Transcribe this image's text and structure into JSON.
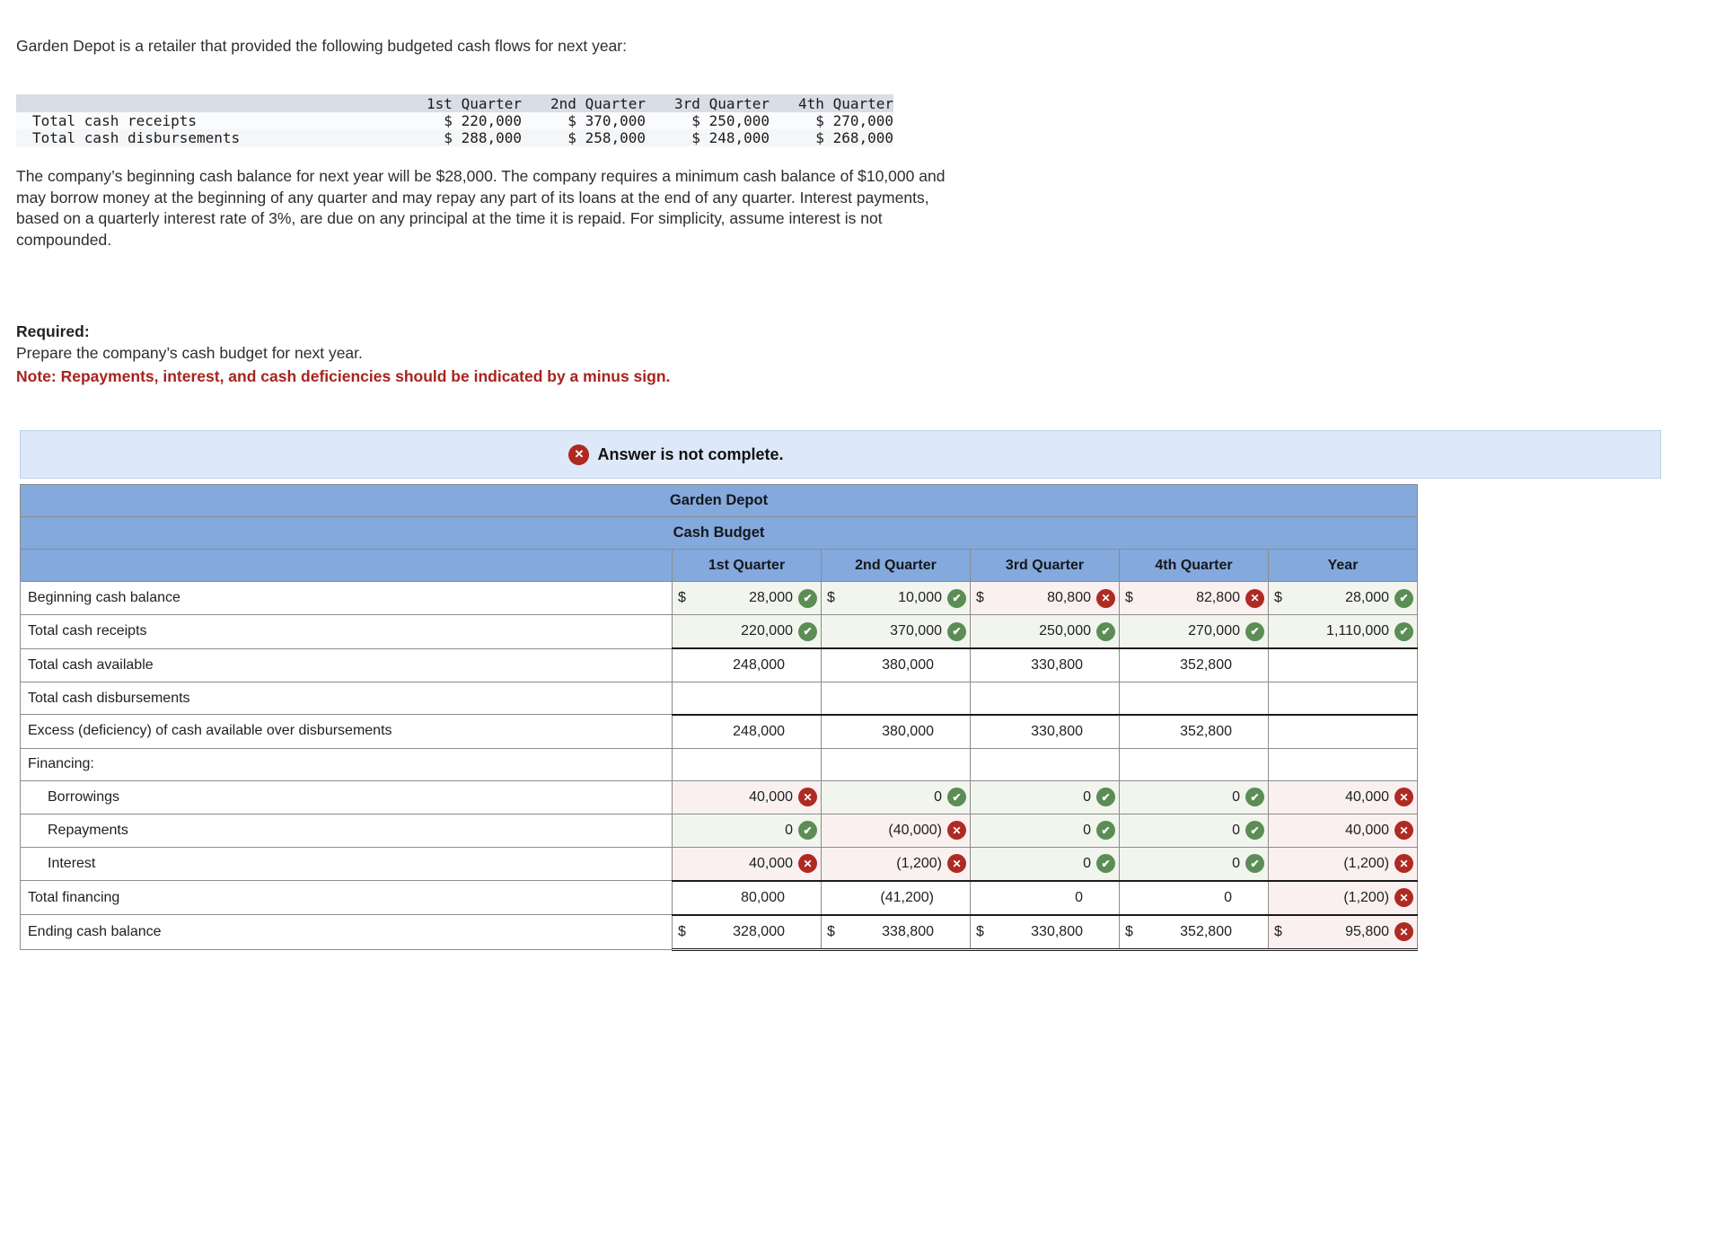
{
  "intro": "Garden Depot is a retailer that provided the following budgeted cash flows for next year:",
  "flows_table": {
    "col_headers": [
      "1st Quarter",
      "2nd Quarter",
      "3rd Quarter",
      "4th Quarter"
    ],
    "rows": [
      {
        "label": "Total cash receipts",
        "values": [
          "$ 220,000",
          "$ 370,000",
          "$ 250,000",
          "$ 270,000"
        ]
      },
      {
        "label": "Total cash disbursements",
        "values": [
          "$ 288,000",
          "$ 258,000",
          "$ 248,000",
          "$ 268,000"
        ]
      }
    ]
  },
  "paragraph_lines": [
    "The company’s beginning cash balance for next year will be $28,000. The company requires a minimum cash balance of $10,000 and",
    "may borrow money at the beginning of any quarter and may repay any part of its loans at the end of any quarter. Interest payments,",
    "based on a quarterly interest rate of 3%, are due on any principal at the time it is repaid. For simplicity, assume interest is not",
    "compounded."
  ],
  "required": {
    "label": "Required:",
    "instruction": "Prepare the company’s cash budget for next year.",
    "note": "Note: Repayments, interest, and cash deficiencies should be indicated by a minus sign."
  },
  "banner": {
    "icon": "x-circle-icon",
    "text": "Answer is not complete."
  },
  "budget_table": {
    "title_line1": "Garden Depot",
    "title_line2": "Cash Budget",
    "col_headers": [
      "1st Quarter",
      "2nd Quarter",
      "3rd Quarter",
      "4th Quarter",
      "Year"
    ],
    "rows": [
      {
        "label": "Beginning cash balance",
        "cells": [
          {
            "dollar": "$",
            "value": "28,000",
            "status": "correct"
          },
          {
            "dollar": "$",
            "value": "10,000",
            "status": "correct"
          },
          {
            "dollar": "$",
            "value": "80,800",
            "status": "wrong"
          },
          {
            "dollar": "$",
            "value": "82,800",
            "status": "wrong"
          },
          {
            "dollar": "$",
            "value": "28,000",
            "status": "correct"
          }
        ]
      },
      {
        "label": "Total cash receipts",
        "rule_bottom": true,
        "cells": [
          {
            "value": "220,000",
            "status": "correct"
          },
          {
            "value": "370,000",
            "status": "correct"
          },
          {
            "value": "250,000",
            "status": "correct"
          },
          {
            "value": "270,000",
            "status": "correct"
          },
          {
            "value": "1,110,000",
            "status": "correct"
          }
        ]
      },
      {
        "label": "Total cash available",
        "cells": [
          {
            "value": "248,000"
          },
          {
            "value": "380,000"
          },
          {
            "value": "330,800"
          },
          {
            "value": "352,800"
          },
          {}
        ]
      },
      {
        "label": "Total cash disbursements",
        "rule_bottom": true,
        "cells": [
          {},
          {},
          {},
          {},
          {}
        ]
      },
      {
        "label": "Excess (deficiency) of cash available over disbursements",
        "cells": [
          {
            "value": "248,000"
          },
          {
            "value": "380,000"
          },
          {
            "value": "330,800"
          },
          {
            "value": "352,800"
          },
          {}
        ]
      },
      {
        "label": "Financing:",
        "cells": [
          {},
          {},
          {},
          {},
          {}
        ]
      },
      {
        "label": "Borrowings",
        "indent": true,
        "cells": [
          {
            "value": "40,000",
            "status": "wrong"
          },
          {
            "value": "0",
            "status": "correct"
          },
          {
            "value": "0",
            "status": "correct"
          },
          {
            "value": "0",
            "status": "correct"
          },
          {
            "value": "40,000",
            "status": "wrong"
          }
        ]
      },
      {
        "label": "Repayments",
        "indent": true,
        "cells": [
          {
            "value": "0",
            "status": "correct"
          },
          {
            "value": "(40,000)",
            "status": "wrong"
          },
          {
            "value": "0",
            "status": "correct"
          },
          {
            "value": "0",
            "status": "correct"
          },
          {
            "value": "40,000",
            "status": "wrong"
          }
        ]
      },
      {
        "label": "Interest",
        "indent": true,
        "rule_bottom": true,
        "cells": [
          {
            "value": "40,000",
            "status": "wrong"
          },
          {
            "value": "(1,200)",
            "status": "wrong"
          },
          {
            "value": "0",
            "status": "correct"
          },
          {
            "value": "0",
            "status": "correct"
          },
          {
            "value": "(1,200)",
            "status": "wrong"
          }
        ]
      },
      {
        "label": "Total financing",
        "rule_bottom": true,
        "cells": [
          {
            "value": "80,000"
          },
          {
            "value": "(41,200)"
          },
          {
            "value": "0"
          },
          {
            "value": "0"
          },
          {
            "value": "(1,200)",
            "status": "wrong"
          }
        ]
      },
      {
        "label": "Ending cash balance",
        "double_bottom": true,
        "cells": [
          {
            "dollar": "$",
            "value": "328,000"
          },
          {
            "dollar": "$",
            "value": "338,800"
          },
          {
            "dollar": "$",
            "value": "330,800"
          },
          {
            "dollar": "$",
            "value": "352,800"
          },
          {
            "dollar": "$",
            "value": "95,800",
            "status": "wrong"
          }
        ]
      }
    ]
  },
  "colors": {
    "table_header_blue": "#84a9dc",
    "banner_bg": "#dde9f8",
    "correct_green": "#5b8d55",
    "wrong_red": "#ad2b23",
    "correct_cell_bg": "#f1f5ee",
    "wrong_cell_bg": "#faf0f0",
    "note_red": "#a8231d",
    "flows_header_bg": "#d9dde5"
  }
}
